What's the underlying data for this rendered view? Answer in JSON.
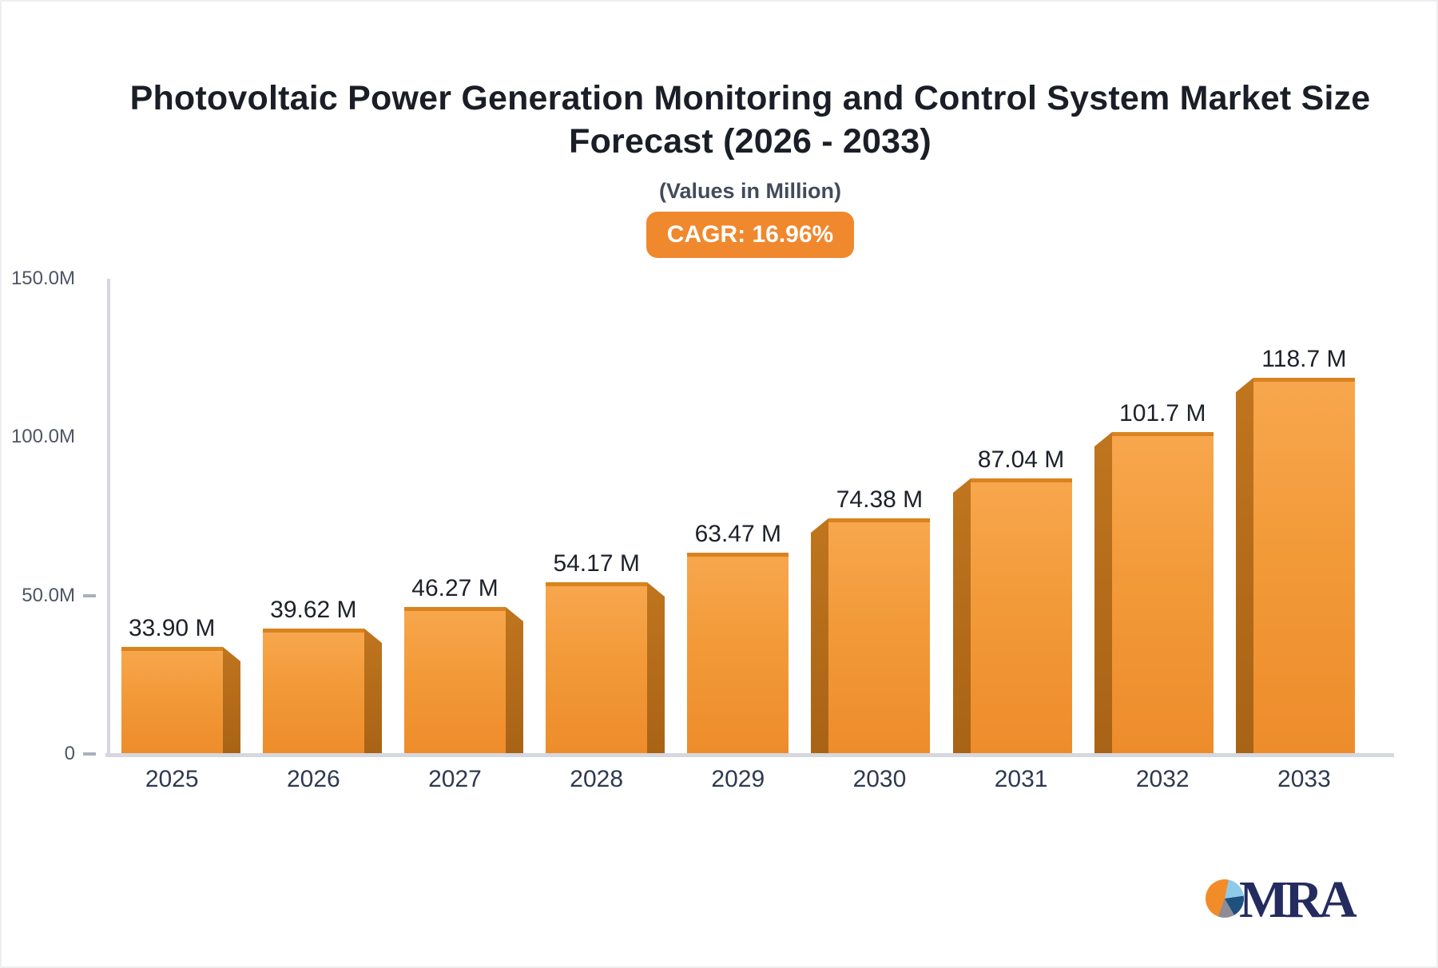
{
  "header": {
    "title_line1": "Photovoltaic Power Generation Monitoring and Control System Market Size",
    "title_line2": "Forecast (2026 - 2033)",
    "subtitle": "(Values in Million)",
    "cagr_badge": "CAGR: 16.96%"
  },
  "logo": {
    "text": "MRA",
    "pie_colors": [
      "#F28C28",
      "#8FCBE8",
      "#20517E",
      "#8E8C94"
    ]
  },
  "colors": {
    "badge_bg": "#F0882E",
    "bar_front_top": "#F8A74E",
    "bar_front_bottom": "#EE8C2B",
    "bar_side": "#B06A16",
    "bar_top_edge": "#D9831F",
    "axis_line": "#d6d8df",
    "title_text": "#1b1e27",
    "label_text": "#1d2129"
  },
  "chart_data": {
    "type": "bar",
    "title": "Photovoltaic Power Generation Monitoring and Control System Market Size Forecast (2026 - 2033)",
    "subtitle": "(Values in Million)",
    "annotation": "CAGR: 16.96%",
    "xlabel": "",
    "ylabel": "",
    "unit": "Million",
    "categories": [
      "2025",
      "2026",
      "2027",
      "2028",
      "2029",
      "2030",
      "2031",
      "2032",
      "2033"
    ],
    "values": [
      33.9,
      39.62,
      46.27,
      54.17,
      63.47,
      74.38,
      87.04,
      101.7,
      118.7
    ],
    "display_values": [
      "33.90 M",
      "39.62 M",
      "46.27 M",
      "54.17 M",
      "63.47 M",
      "74.38 M",
      "87.04 M",
      "101.7 M",
      "118.7 M"
    ],
    "ylim": [
      0,
      150
    ],
    "grid": false,
    "legend": false,
    "y_axis": [
      {
        "label": "150.0M",
        "value": 150,
        "tick": false
      },
      {
        "label": "100.0M",
        "value": 100,
        "tick": false
      },
      {
        "label": "50.0M",
        "value": 50,
        "tick": true
      },
      {
        "label": "0",
        "value": 0,
        "tick": true
      }
    ]
  }
}
